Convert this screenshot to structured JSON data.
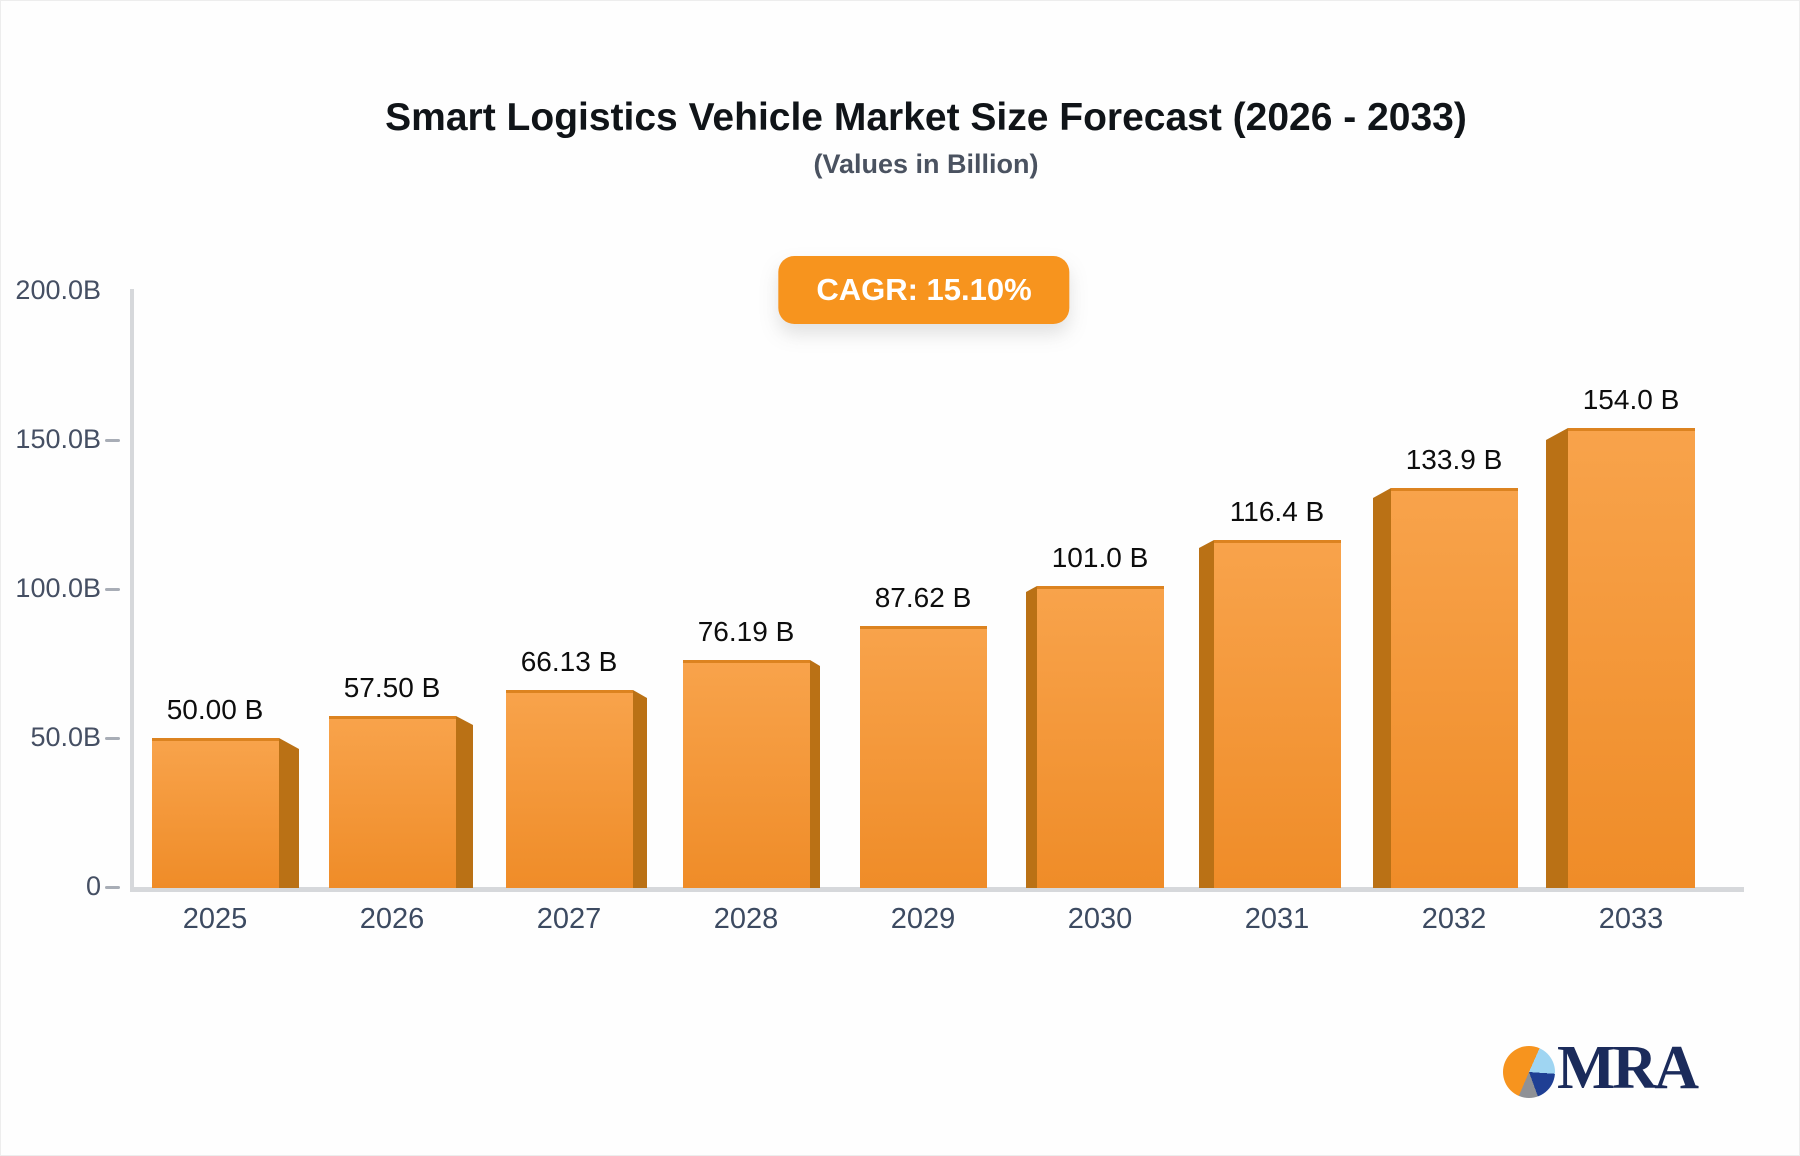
{
  "chart_data": {
    "type": "bar",
    "title": "Smart Logistics Vehicle Market Size Forecast (2026 - 2033)",
    "subtitle": "(Values in Billion)",
    "badge_label": "CAGR: 15.10%",
    "categories": [
      "2025",
      "2026",
      "2027",
      "2028",
      "2029",
      "2030",
      "2031",
      "2032",
      "2033"
    ],
    "values": [
      50.0,
      57.5,
      66.13,
      76.19,
      87.62,
      101.0,
      116.4,
      133.9,
      154.0
    ],
    "value_labels": [
      "50.00 B",
      "57.50 B",
      "66.13 B",
      "76.19 B",
      "87.62 B",
      "101.0 B",
      "116.4 B",
      "133.9 B",
      "154.0 B"
    ],
    "y_axis": {
      "max": 200,
      "ticks": [
        {
          "label": "0",
          "value": 0
        },
        {
          "label": "50.0B",
          "value": 50
        },
        {
          "label": "100.0B",
          "value": 100
        },
        {
          "label": "150.0B",
          "value": 150
        },
        {
          "label": "200.0B",
          "value": 200
        }
      ]
    },
    "grid": "off",
    "legend": "none"
  },
  "logo": {
    "text": "MRA"
  },
  "colors": {
    "badge_bg": "#f7941e",
    "badge_text": "#ffffff",
    "bar_front_top": "#f8a34b",
    "bar_front_bottom": "#ef8c28",
    "bar_side": "#ba7115",
    "bar_top_edge": "#dc8320",
    "axis_line": "#d6d8db",
    "tick_dash": "#a8adb6",
    "logo_navy": "#1b2b5b",
    "logo_orange": "#f7941e",
    "logo_lightblue": "#9fd5f2",
    "logo_blue": "#1f3f94",
    "logo_gray": "#8f9196"
  }
}
